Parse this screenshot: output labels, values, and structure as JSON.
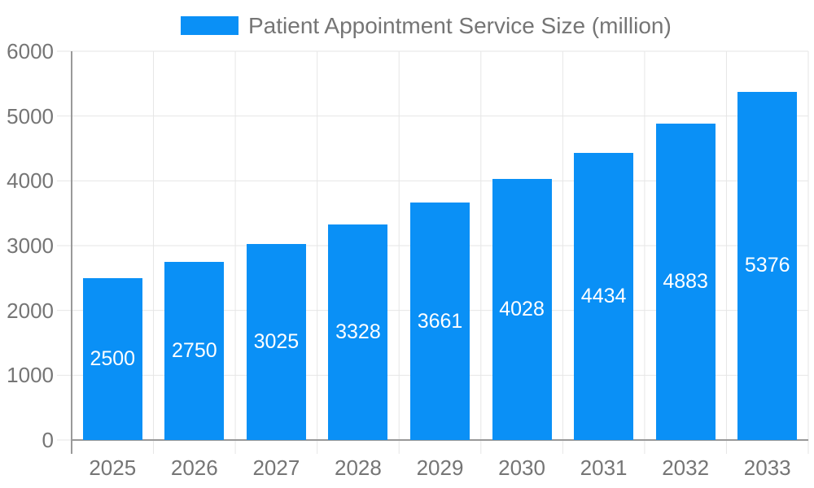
{
  "chart_data": {
    "type": "bar",
    "title": "Patient Appointment Service Size (million)",
    "legend": {
      "label": "Patient Appointment Service Size (million)",
      "position": "top"
    },
    "categories": [
      "2025",
      "2026",
      "2027",
      "2028",
      "2029",
      "2030",
      "2031",
      "2032",
      "2033"
    ],
    "values": [
      2500,
      2750,
      3025,
      3328,
      3661,
      4028,
      4434,
      4883,
      5376
    ],
    "xlabel": "",
    "ylabel": "",
    "ylim": [
      0,
      6000
    ],
    "yticks": [
      0,
      1000,
      2000,
      3000,
      4000,
      5000,
      6000
    ],
    "grid": "on",
    "value_labels_inside_bars": true,
    "colors": {
      "bar": "#0a90f6",
      "text": "#757575",
      "grid": "#e6e6e6",
      "axis": "#999999",
      "value_label": "#ffffff",
      "background": "#ffffff"
    }
  }
}
